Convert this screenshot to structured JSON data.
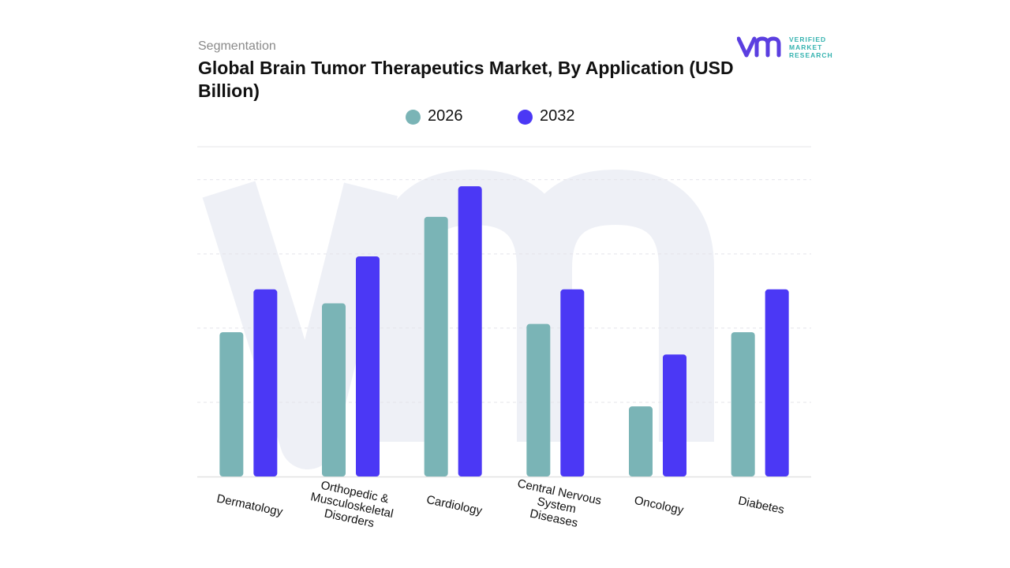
{
  "header": {
    "eyebrow": "Segmentation",
    "title": "Global Brain Tumor Therapeutics Market, By Application (USD Billion)"
  },
  "logo": {
    "line1": "VERIFIED",
    "line2": "MARKET",
    "line3": "RESEARCH",
    "mark_color": "#5b3fe0",
    "text_color": "#36b3b0"
  },
  "colors": {
    "series_2026": "#7ab4b6",
    "series_2032": "#4b38f5",
    "grid": "#e4e4ea",
    "watermark": "#eef0f6"
  },
  "chart_data": {
    "type": "bar",
    "title": "Global Brain Tumor Therapeutics Market, By Application (USD Billion)",
    "categories": [
      [
        "Dermatology"
      ],
      [
        "Orthopedic &",
        "Musculoskeletal",
        "Disorders"
      ],
      [
        "Cardiology"
      ],
      [
        "Central Nervous",
        "System",
        "Diseases"
      ],
      [
        "Oncology"
      ],
      [
        "Diabetes"
      ]
    ],
    "series": [
      {
        "name": "2026",
        "values": [
          1.75,
          2.1,
          3.15,
          1.85,
          0.85,
          1.75
        ]
      },
      {
        "name": "2032",
        "values": [
          2.27,
          2.67,
          3.52,
          2.27,
          1.48,
          2.27
        ]
      }
    ],
    "xlabel": "",
    "ylabel": "",
    "ylim": [
      0,
      4.0
    ],
    "grid": true,
    "legend_position": "top-center"
  }
}
